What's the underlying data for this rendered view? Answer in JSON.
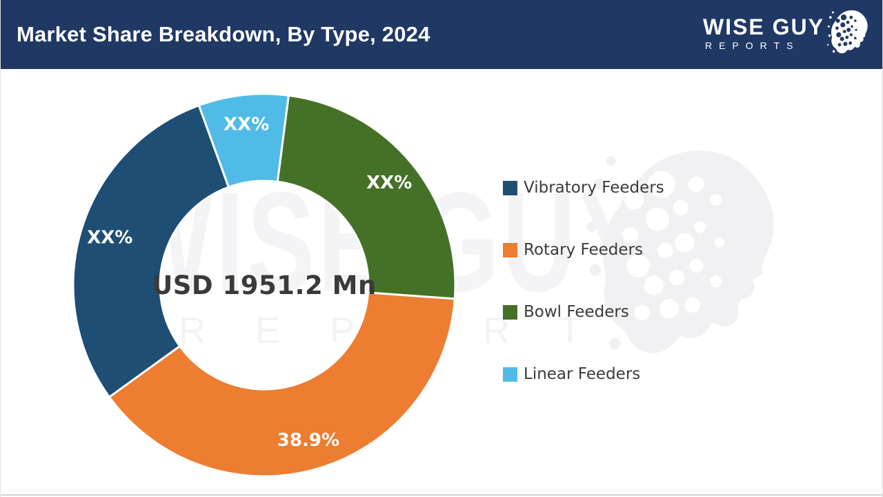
{
  "header": {
    "title": "Market Share Breakdown, By Type, 2024",
    "logo": {
      "line1": "WISE GUY",
      "line2": "REPORTS"
    }
  },
  "watermark": {
    "line1": "WISE GUY",
    "line2": "REPORTS"
  },
  "chart_data": {
    "type": "pie",
    "subtype": "donut",
    "title": "Market Share Breakdown, By Type, 2024",
    "center_label": "USD 1951.2 Mn",
    "units": "percent market share",
    "start_angle_deg": -20,
    "inner_radius_ratio": 0.545,
    "legend_position": "right",
    "draw_order": [
      "Linear Feeders",
      "Bowl Feeders",
      "Rotary Feeders",
      "Vibratory Feeders"
    ],
    "segments": [
      {
        "label": "Vibratory Feeders",
        "value": 29.4,
        "display": "XX%",
        "color": "#1f4e74"
      },
      {
        "label": "Rotary Feeders",
        "value": 38.9,
        "display": "38.9%",
        "color": "#ed7d31"
      },
      {
        "label": "Bowl Feeders",
        "value": 24.1,
        "display": "XX%",
        "color": "#447127"
      },
      {
        "label": "Linear Feeders",
        "value": 7.6,
        "display": "XX%",
        "color": "#50bbe7"
      }
    ]
  },
  "colors": {
    "header_bg": "#1f3864",
    "center_text": "#3a3a3a",
    "legend_text": "#3b3b3b",
    "watermark": "#f4f4f6",
    "label_text": "#ffffff"
  }
}
